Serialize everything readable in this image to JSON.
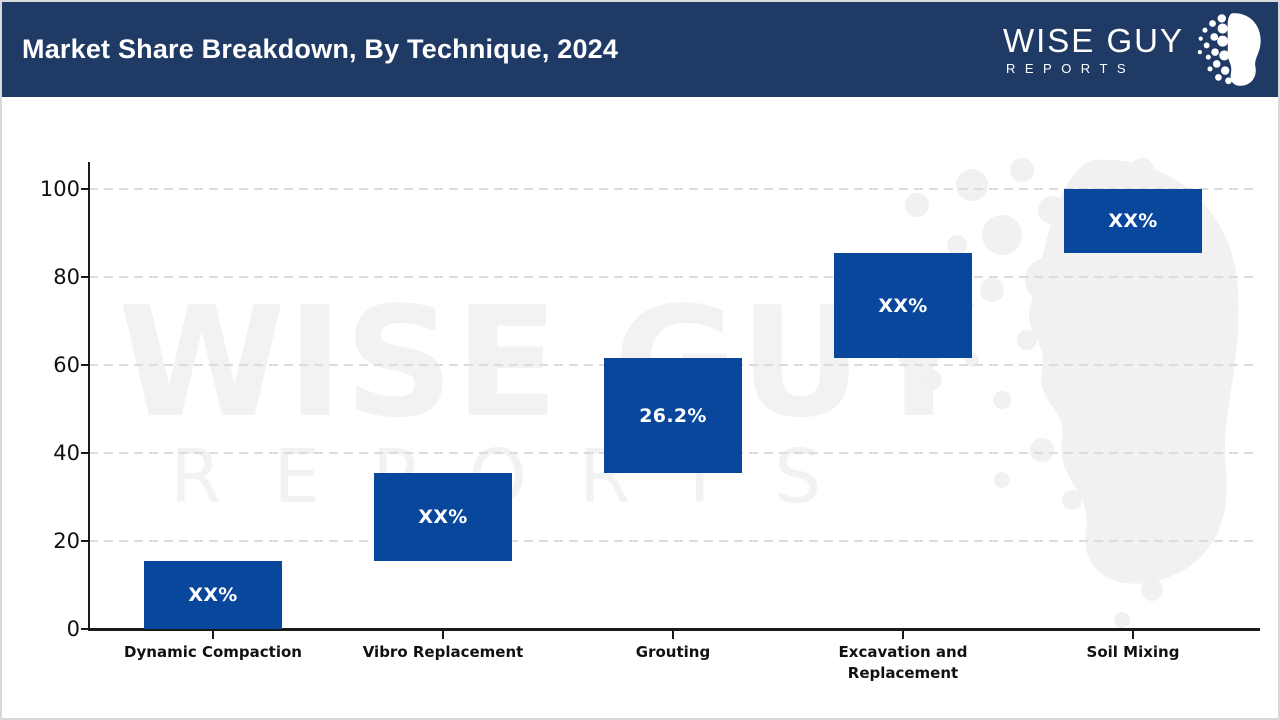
{
  "header": {
    "title": "Market Share Breakdown, By Technique, 2024",
    "logo": {
      "name": "WISE GUY",
      "subtitle": "REPORTS"
    }
  },
  "watermark": {
    "line1": "WISE GUY",
    "line2": "REPORTS"
  },
  "theme": {
    "header_bg": "#203a66",
    "bar_color": "#09479d",
    "grid_color": "#dcdcdc",
    "axis_color": "#1a1a1a",
    "watermark_color": "#f2f2f2",
    "page_border": "#d9d9d9",
    "value_label_color": "#ffffff"
  },
  "chart_data": {
    "type": "bar",
    "variant": "waterfall",
    "title": "Market Share Breakdown, By Technique, 2024",
    "categories": [
      "Dynamic Compaction",
      "Vibro Replacement",
      "Grouting",
      "Excavation and Replacement",
      "Soil Mixing"
    ],
    "bars": [
      {
        "category": "Dynamic Compaction",
        "start": 0,
        "end": 15.5,
        "value_label": "XX%"
      },
      {
        "category": "Vibro Replacement",
        "start": 15.5,
        "end": 35.4,
        "value_label": "XX%"
      },
      {
        "category": "Grouting",
        "start": 35.4,
        "end": 61.6,
        "value_label": "26.2%"
      },
      {
        "category": "Excavation and Replacement",
        "start": 61.6,
        "end": 85.4,
        "value_label": "XX%"
      },
      {
        "category": "Soil Mixing",
        "start": 85.4,
        "end": 100,
        "value_label": "XX%"
      }
    ],
    "y_ticks": [
      0,
      20,
      40,
      60,
      80,
      100
    ],
    "ylim": [
      0,
      100
    ],
    "xlabel": "",
    "ylabel": "",
    "grid": "horizontal-dashed",
    "legend": "none"
  }
}
